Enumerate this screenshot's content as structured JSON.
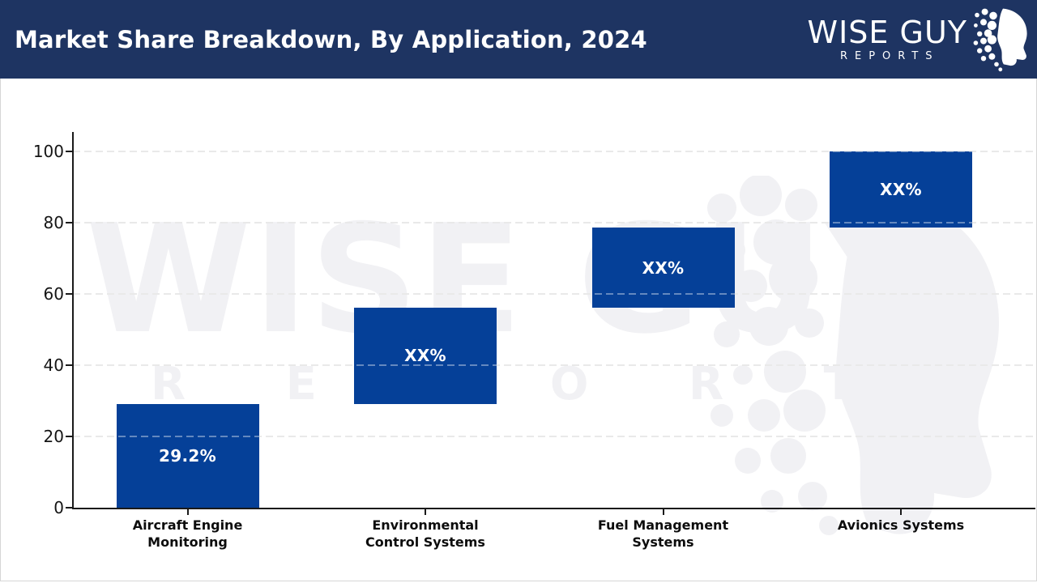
{
  "header": {
    "title": "Market Share Breakdown, By Application, 2024",
    "logo": {
      "brand": "WISE GUY",
      "sub": "REPORTS"
    }
  },
  "watermark": {
    "brand": "WISE GUY",
    "sub": "R E P O R T S"
  },
  "chart_data": {
    "type": "bar",
    "subtype": "waterfall",
    "title": "Market Share Breakdown, By Application, 2024",
    "categories": [
      "Aircraft Engine Monitoring",
      "Environmental Control Systems",
      "Fuel Management Systems",
      "Avionics Systems"
    ],
    "categories_display": [
      [
        "Aircraft Engine",
        "Monitoring"
      ],
      [
        "Environmental",
        "Control Systems"
      ],
      [
        "Fuel Management",
        "Systems"
      ],
      [
        "Avionics Systems"
      ]
    ],
    "segments": [
      {
        "category": "Aircraft Engine Monitoring",
        "start": 0,
        "end": 29.2,
        "label": "29.2%"
      },
      {
        "category": "Environmental Control Systems",
        "start": 29.2,
        "end": 56.1,
        "label": "XX%"
      },
      {
        "category": "Fuel Management Systems",
        "start": 56.1,
        "end": 78.6,
        "label": "XX%"
      },
      {
        "category": "Avionics Systems",
        "start": 78.6,
        "end": 100,
        "label": "XX%"
      }
    ],
    "xlabel": "",
    "ylabel": "",
    "ylim": [
      0,
      100
    ],
    "yticks": [
      0,
      20,
      40,
      60,
      80,
      100
    ],
    "grid": "horizontal-dashed",
    "legend": "none"
  },
  "colors": {
    "header_bg": "#1e3462",
    "bar": "#054098",
    "bar_label": "#ffffff",
    "axis": "#1a1a1a",
    "gridline": "#dcdcdc",
    "gridline_over_bar": "rgba(255,255,255,0.38)",
    "frame_border": "#d6d6d6",
    "watermark": "#f1f1f4",
    "background": "#ffffff"
  }
}
